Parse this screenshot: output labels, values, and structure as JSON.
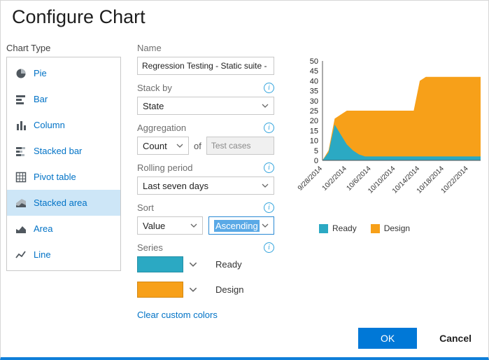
{
  "dialog": {
    "title": "Configure Chart"
  },
  "chart_type": {
    "label": "Chart Type",
    "items": [
      {
        "label": "Pie",
        "selected": false
      },
      {
        "label": "Bar",
        "selected": false
      },
      {
        "label": "Column",
        "selected": false
      },
      {
        "label": "Stacked bar",
        "selected": false
      },
      {
        "label": "Pivot table",
        "selected": false
      },
      {
        "label": "Stacked area",
        "selected": true
      },
      {
        "label": "Area",
        "selected": false
      },
      {
        "label": "Line",
        "selected": false
      }
    ]
  },
  "form": {
    "name": {
      "label": "Name",
      "value": "Regression Testing - Static suite - Ch"
    },
    "stack_by": {
      "label": "Stack by",
      "value": "State"
    },
    "aggregation": {
      "label": "Aggregation",
      "value": "Count",
      "of_label": "of",
      "field_value": "Test cases"
    },
    "rolling_period": {
      "label": "Rolling period",
      "value": "Last seven days"
    },
    "sort": {
      "label": "Sort",
      "value": "Value",
      "direction": "Ascending"
    },
    "series": {
      "label": "Series",
      "rows": [
        {
          "name": "Ready",
          "color": "#2BA9C3"
        },
        {
          "name": "Design",
          "color": "#F7A019"
        }
      ],
      "clear_label": "Clear custom colors"
    }
  },
  "footer": {
    "ok_label": "OK",
    "cancel_label": "Cancel"
  },
  "chart_data": {
    "type": "area",
    "stacked": true,
    "ylim": [
      0,
      50
    ],
    "ytick_step": 5,
    "x_tick_labels": [
      "9/28/2014",
      "10/2/2014",
      "10/6/2014",
      "10/10/2014",
      "10/14/2014",
      "10/18/2014",
      "10/22/2014"
    ],
    "x_tick_positions": [
      0,
      4,
      8,
      12,
      16,
      20,
      24
    ],
    "n_points": 27,
    "legend_position": "bottom",
    "series": [
      {
        "name": "Ready",
        "color": "#2BA9C3",
        "values": [
          0,
          4,
          18,
          13,
          8,
          5,
          3,
          2,
          2,
          2,
          2,
          2,
          2,
          2,
          2,
          2,
          2,
          2,
          2,
          2,
          2,
          2,
          2,
          2,
          2,
          2,
          2
        ]
      },
      {
        "name": "Design",
        "color": "#F7A019",
        "values": [
          0,
          1,
          3,
          10,
          17,
          20,
          22,
          23,
          23,
          23,
          23,
          23,
          23,
          23,
          23,
          23,
          38,
          40,
          40,
          40,
          40,
          40,
          40,
          40,
          40,
          40,
          40
        ]
      }
    ]
  }
}
